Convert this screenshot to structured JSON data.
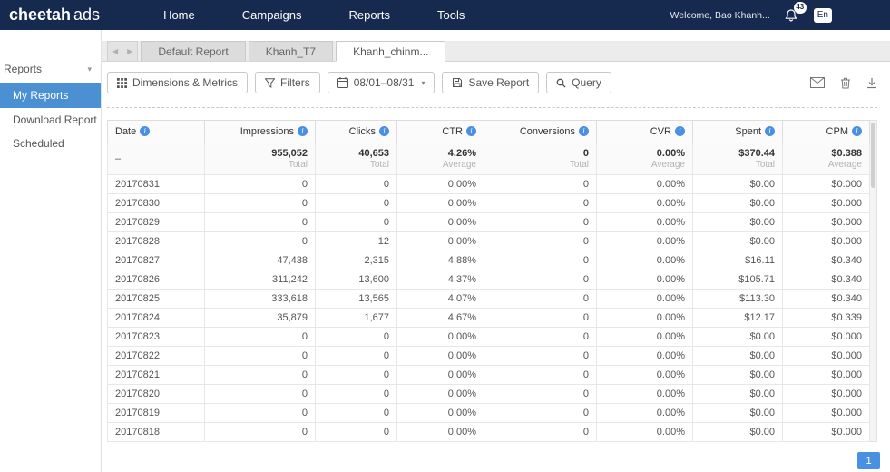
{
  "topbar": {
    "logo_bold": "cheetah",
    "logo_light": "ads",
    "nav": [
      {
        "label": "Home"
      },
      {
        "label": "Campaigns"
      },
      {
        "label": "Reports"
      },
      {
        "label": "Tools"
      }
    ],
    "welcome_label": "Welcome,",
    "username": "Bao Khanh...",
    "notification_count": "43",
    "language_label": "En"
  },
  "sidebar": {
    "section_label": "Reports",
    "items": [
      {
        "label": "My Reports",
        "active": true
      },
      {
        "label": "Download Report",
        "active": false
      },
      {
        "label": "Scheduled",
        "active": false
      }
    ]
  },
  "tabs": [
    {
      "label": "Default Report",
      "active": false
    },
    {
      "label": "Khanh_T7",
      "active": false
    },
    {
      "label": "Khanh_chinm...",
      "active": true
    }
  ],
  "toolbar": {
    "dimensions_metrics_label": "Dimensions & Metrics",
    "filters_label": "Filters",
    "date_range_label": "08/01–08/31",
    "save_report_label": "Save Report",
    "query_label": "Query"
  },
  "icons": {
    "toolbar_right": [
      "mail-icon",
      "trash-icon",
      "download-icon"
    ],
    "notifications": "bell-icon",
    "header_info": "info-icon"
  },
  "colors": {
    "topbar_bg": "#16294e",
    "accent_blue": "#4a90e2",
    "active_sidebar_bg": "#4a90d2"
  },
  "table": {
    "headers": [
      "Date",
      "Impressions",
      "Clicks",
      "CTR",
      "Conversions",
      "CVR",
      "Spent",
      "CPM"
    ],
    "summary": {
      "date": "–",
      "values": [
        {
          "value": "955,052",
          "sub": "Total"
        },
        {
          "value": "40,653",
          "sub": "Total"
        },
        {
          "value": "4.26%",
          "sub": "Average"
        },
        {
          "value": "0",
          "sub": "Total"
        },
        {
          "value": "0.00%",
          "sub": "Average"
        },
        {
          "value": "$370.44",
          "sub": "Total"
        },
        {
          "value": "$0.388",
          "sub": "Average"
        }
      ]
    },
    "rows": [
      [
        "20170831",
        "0",
        "0",
        "0.00%",
        "0",
        "0.00%",
        "$0.00",
        "$0.000"
      ],
      [
        "20170830",
        "0",
        "0",
        "0.00%",
        "0",
        "0.00%",
        "$0.00",
        "$0.000"
      ],
      [
        "20170829",
        "0",
        "0",
        "0.00%",
        "0",
        "0.00%",
        "$0.00",
        "$0.000"
      ],
      [
        "20170828",
        "0",
        "12",
        "0.00%",
        "0",
        "0.00%",
        "$0.00",
        "$0.000"
      ],
      [
        "20170827",
        "47,438",
        "2,315",
        "4.88%",
        "0",
        "0.00%",
        "$16.11",
        "$0.340"
      ],
      [
        "20170826",
        "311,242",
        "13,600",
        "4.37%",
        "0",
        "0.00%",
        "$105.71",
        "$0.340"
      ],
      [
        "20170825",
        "333,618",
        "13,565",
        "4.07%",
        "0",
        "0.00%",
        "$113.30",
        "$0.340"
      ],
      [
        "20170824",
        "35,879",
        "1,677",
        "4.67%",
        "0",
        "0.00%",
        "$12.17",
        "$0.339"
      ],
      [
        "20170823",
        "0",
        "0",
        "0.00%",
        "0",
        "0.00%",
        "$0.00",
        "$0.000"
      ],
      [
        "20170822",
        "0",
        "0",
        "0.00%",
        "0",
        "0.00%",
        "$0.00",
        "$0.000"
      ],
      [
        "20170821",
        "0",
        "0",
        "0.00%",
        "0",
        "0.00%",
        "$0.00",
        "$0.000"
      ],
      [
        "20170820",
        "0",
        "0",
        "0.00%",
        "0",
        "0.00%",
        "$0.00",
        "$0.000"
      ],
      [
        "20170819",
        "0",
        "0",
        "0.00%",
        "0",
        "0.00%",
        "$0.00",
        "$0.000"
      ],
      [
        "20170818",
        "0",
        "0",
        "0.00%",
        "0",
        "0.00%",
        "$0.00",
        "$0.000"
      ]
    ]
  },
  "pagination": {
    "current_page": "1"
  }
}
